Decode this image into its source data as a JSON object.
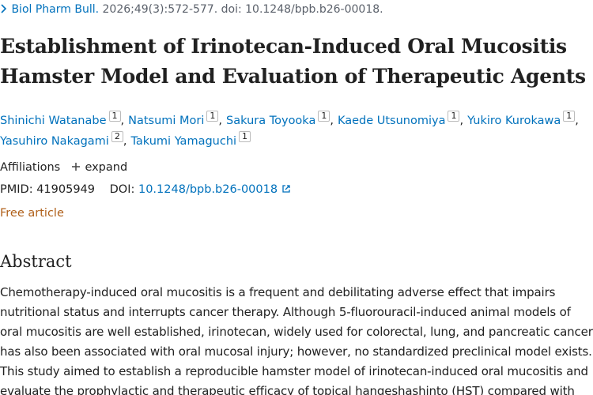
{
  "header": {
    "journal": "Biol Pharm Bull.",
    "citation": "2026;49(3):572-577. doi: 10.1248/bpb.b26-00018."
  },
  "title_lines": [
    "Establishment of Irinotecan-Induced Oral Mucositis",
    "Hamster Model and Evaluation of Therapeutic Agents"
  ],
  "author_separator": ",",
  "authors": [
    [
      {
        "name": "Shinichi Watanabe",
        "aff": "1"
      },
      {
        "name": "Natsumi Mori",
        "aff": "1"
      },
      {
        "name": "Sakura Toyooka",
        "aff": "1"
      },
      {
        "name": "Kaede Utsunomiya",
        "aff": "1"
      },
      {
        "name": "Yukiro Kurokawa",
        "aff": "1"
      }
    ],
    [
      {
        "name": "Yasuhiro Nakagami",
        "aff": "2"
      },
      {
        "name": "Takumi Yamaguchi",
        "aff": "1"
      }
    ]
  ],
  "affiliations": {
    "label": "Affiliations",
    "toggle": "expand"
  },
  "ids": {
    "pmid_label": "PMID:",
    "pmid": "41905949",
    "doi_label": "DOI:",
    "doi": "10.1248/bpb.b26-00018"
  },
  "free": "Free article",
  "abstract": {
    "heading": "Abstract",
    "lines": [
      "Chemotherapy-induced oral mucositis is a frequent and debilitating adverse effect that impairs",
      "nutritional status and interrupts cancer therapy. Although 5-fluorouracil-induced animal models of",
      "oral mucositis are well established, irinotecan, widely used for colorectal, lung, and pancreatic cancers,",
      "has also been associated with oral mucosal injury; however, no standardized preclinical model exists.",
      "This study aimed to establish a reproducible hamster model of irinotecan-induced oral mucositis and",
      "evaluate the prophylactic and therapeutic efficacy of topical hangeshashinto (HST) compared with"
    ]
  }
}
